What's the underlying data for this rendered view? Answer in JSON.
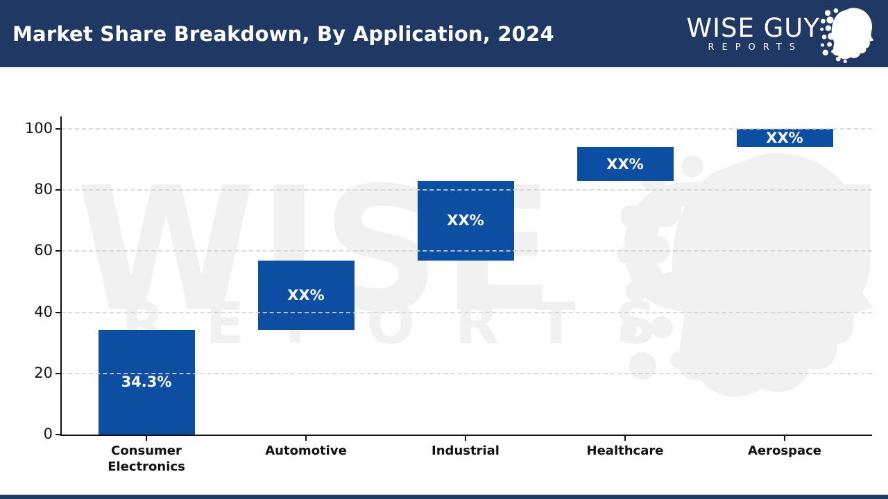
{
  "header": {
    "title": "Market Share Breakdown, By Application, 2024",
    "logo": {
      "line1": "WISE GUY",
      "line2": "REPORTS"
    }
  },
  "watermark": {
    "line1": "WISE GU",
    "line2": "REPORTS"
  },
  "chart_data": {
    "type": "bar",
    "subtype": "waterfall",
    "title": "Market Share Breakdown, By Application, 2024",
    "categories": [
      "Consumer Electronics",
      "Automotive",
      "Industrial",
      "Healthcare",
      "Aerospace"
    ],
    "segments": [
      {
        "category": "Consumer Electronics",
        "start": 0,
        "end": 34.3,
        "label": "34.3%"
      },
      {
        "category": "Automotive",
        "start": 34.3,
        "end": 57,
        "label": "XX%"
      },
      {
        "category": "Industrial",
        "start": 57,
        "end": 83,
        "label": "XX%"
      },
      {
        "category": "Healthcare",
        "start": 83,
        "end": 94,
        "label": "XX%"
      },
      {
        "category": "Aerospace",
        "start": 94,
        "end": 100,
        "label": "XX%"
      }
    ],
    "ylim": [
      0,
      100
    ],
    "yticks": [
      0,
      20,
      40,
      60,
      80,
      100
    ],
    "xlabel": "",
    "ylabel": "",
    "grid": "horizontal-dashed",
    "legend": "none",
    "bar_color": "#0b4ea2",
    "bar_label_color": "#ffffff",
    "axis_color": "#111111",
    "header_bg": "#1f3864"
  }
}
